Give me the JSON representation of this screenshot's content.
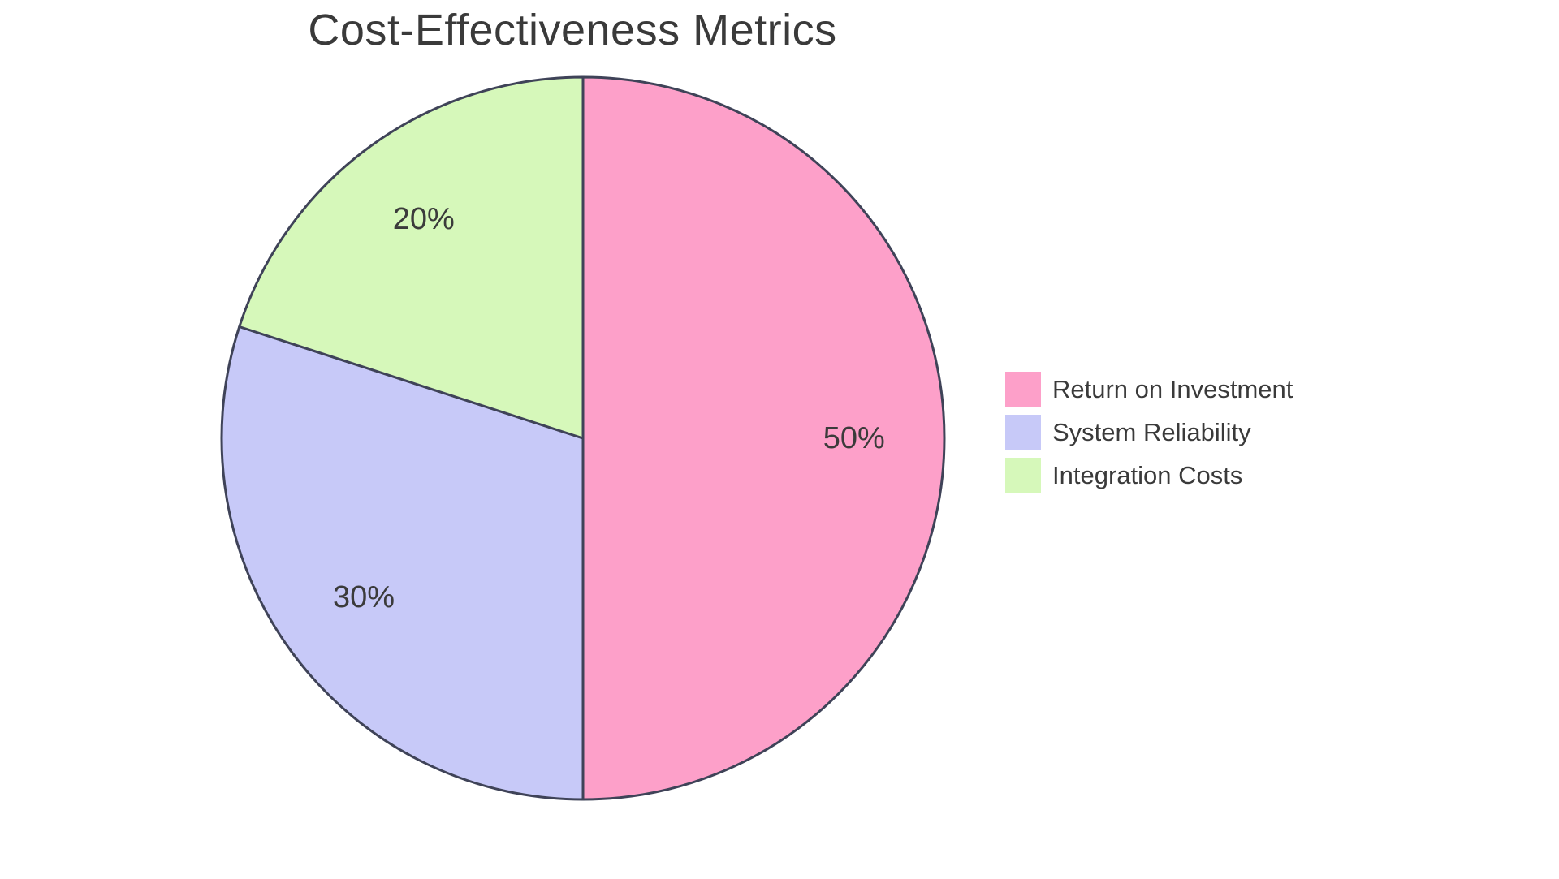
{
  "chart_data": {
    "type": "pie",
    "title": "Cost-Effectiveness Metrics",
    "labels": [
      "Return on Investment",
      "System Reliability",
      "Integration Costs"
    ],
    "values": [
      50,
      30,
      20
    ],
    "slice_labels": [
      "50%",
      "30%",
      "20%"
    ],
    "colors": [
      "#FDA0C9",
      "#C7C9F8",
      "#D6F8BA"
    ],
    "stroke_color": "#3F4358",
    "text_color": "#3B3B3B",
    "start_angle_deg": 0,
    "direction": "clockwise",
    "legend_position": "right",
    "background": "#FFFFFF"
  }
}
